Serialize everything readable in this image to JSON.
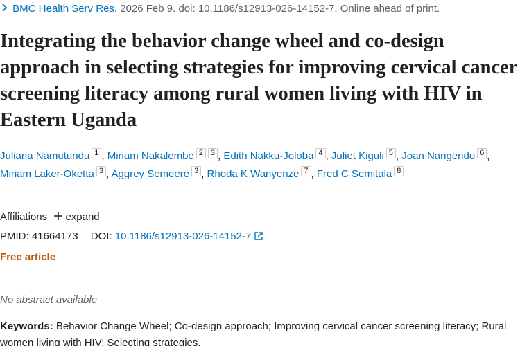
{
  "citation": {
    "journal": "BMC Health Serv Res.",
    "details": "2026 Feb 9. doi: 10.1186/s12913-026-14152-7. Online ahead of print."
  },
  "title": "Integrating the behavior change wheel and co-design approach in selecting strategies for improving cervical cancer screening literacy among rural women living with HIV in Eastern Uganda",
  "authors": {
    "separator": ",",
    "list": [
      {
        "name": "Juliana Namutundu",
        "affiliations": [
          1
        ]
      },
      {
        "name": "Miriam Nakalembe",
        "affiliations": [
          2,
          3
        ]
      },
      {
        "name": "Edith Nakku-Joloba",
        "affiliations": [
          4
        ]
      },
      {
        "name": "Juliet Kiguli",
        "affiliations": [
          5
        ]
      },
      {
        "name": "Joan Nangendo",
        "affiliations": [
          6
        ]
      },
      {
        "name": "Miriam Laker-Oketta",
        "affiliations": [
          3
        ]
      },
      {
        "name": "Aggrey Semeere",
        "affiliations": [
          3
        ]
      },
      {
        "name": "Rhoda K Wanyenze",
        "affiliations": [
          7
        ]
      },
      {
        "name": "Fred C Semitala",
        "affiliations": [
          8
        ]
      }
    ]
  },
  "affiliations": {
    "label": "Affiliations",
    "toggle": "expand"
  },
  "identifiers": {
    "pmid_label": "PMID:",
    "pmid": "41664173",
    "doi_label": "DOI:",
    "doi": "10.1186/s12913-026-14152-7"
  },
  "free_label": "Free article",
  "abstract": "No abstract available",
  "keywords": {
    "label": "Keywords:",
    "text": "Behavior Change Wheel; Co-design approach; Improving cervical cancer screening literacy; Rural women living with HIV; Selecting strategies."
  }
}
